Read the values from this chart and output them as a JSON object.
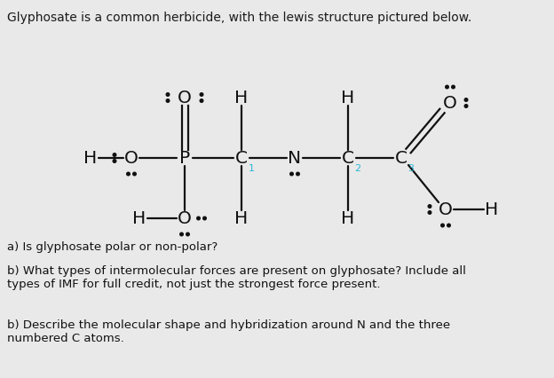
{
  "title_text": "Glyphosate is a common herbicide, with the lewis structure pictured below.",
  "bg_color": "#e9e9e9",
  "question_a": "a) Is glyphosate polar or non-polar?",
  "question_b": "b) What types of intermolecular forces are present on glyphosate? Include all\ntypes of IMF for full credit, not just the strongest force present.",
  "question_c": "b) Describe the molecular shape and hybridization around N and the three\nnumbered C atoms.",
  "atom_color": "#111111",
  "subscript_color": "#29b6d8",
  "figsize": [
    6.24,
    4.27
  ],
  "dpi": 100
}
